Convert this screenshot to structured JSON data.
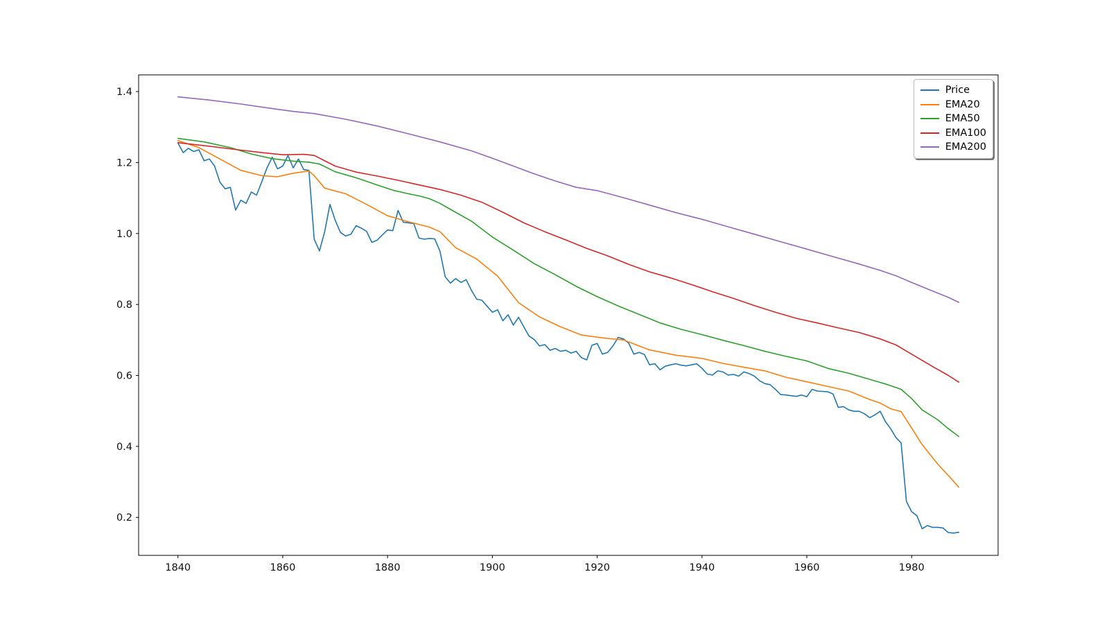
{
  "chart_data": {
    "type": "line",
    "title": "",
    "xlabel": "",
    "ylabel": "",
    "grid": false,
    "xlim": [
      1832.5,
      1996.5
    ],
    "ylim": [
      0.093,
      1.447
    ],
    "legend_position": "upper right",
    "x_ticks": {
      "values": [
        1840,
        1860,
        1880,
        1900,
        1920,
        1940,
        1960,
        1980
      ],
      "labels": [
        "1840",
        "1860",
        "1880",
        "1900",
        "1920",
        "1940",
        "1960",
        "1980"
      ]
    },
    "y_ticks": {
      "values": [
        0.2,
        0.4,
        0.6,
        0.8,
        1.0,
        1.2,
        1.4
      ],
      "labels": [
        "0.2",
        "0.4",
        "0.6",
        "0.8",
        "1.0",
        "1.2",
        "1.4"
      ]
    },
    "series": [
      {
        "name": "Price",
        "color": "#1f77b4",
        "x_start": 1840,
        "x_step": 1,
        "values": [
          1.255,
          1.228,
          1.24,
          1.231,
          1.236,
          1.205,
          1.21,
          1.19,
          1.145,
          1.126,
          1.13,
          1.066,
          1.094,
          1.085,
          1.117,
          1.108,
          1.146,
          1.185,
          1.215,
          1.182,
          1.19,
          1.22,
          1.185,
          1.21,
          1.18,
          1.178,
          0.984,
          0.951,
          1.005,
          1.082,
          1.038,
          1.003,
          0.993,
          0.998,
          1.022,
          1.015,
          1.006,
          0.975,
          0.981,
          0.996,
          1.01,
          1.008,
          1.065,
          1.032,
          1.03,
          1.028,
          0.987,
          0.984,
          0.986,
          0.985,
          0.95,
          0.878,
          0.86,
          0.873,
          0.862,
          0.87,
          0.84,
          0.815,
          0.812,
          0.795,
          0.778,
          0.785,
          0.754,
          0.771,
          0.742,
          0.764,
          0.737,
          0.711,
          0.701,
          0.683,
          0.687,
          0.671,
          0.676,
          0.668,
          0.671,
          0.663,
          0.668,
          0.65,
          0.644,
          0.685,
          0.69,
          0.66,
          0.665,
          0.683,
          0.707,
          0.703,
          0.691,
          0.66,
          0.665,
          0.659,
          0.63,
          0.633,
          0.616,
          0.626,
          0.63,
          0.633,
          0.629,
          0.627,
          0.63,
          0.633,
          0.62,
          0.604,
          0.601,
          0.613,
          0.61,
          0.601,
          0.603,
          0.598,
          0.61,
          0.605,
          0.598,
          0.585,
          0.577,
          0.574,
          0.561,
          0.546,
          0.545,
          0.543,
          0.541,
          0.545,
          0.54,
          0.561,
          0.556,
          0.555,
          0.554,
          0.548,
          0.51,
          0.512,
          0.503,
          0.499,
          0.499,
          0.492,
          0.481,
          0.489,
          0.499,
          0.47,
          0.45,
          0.425,
          0.41,
          0.245,
          0.216,
          0.205,
          0.168,
          0.177,
          0.172,
          0.172,
          0.17,
          0.157,
          0.156,
          0.158
        ]
      },
      {
        "name": "EMA20",
        "color": "#ff7f0e",
        "points": [
          [
            1840,
            1.262
          ],
          [
            1844,
            1.242
          ],
          [
            1848,
            1.21
          ],
          [
            1852,
            1.178
          ],
          [
            1856,
            1.163
          ],
          [
            1859,
            1.16
          ],
          [
            1862,
            1.17
          ],
          [
            1865,
            1.176
          ],
          [
            1866,
            1.163
          ],
          [
            1868,
            1.128
          ],
          [
            1872,
            1.112
          ],
          [
            1876,
            1.082
          ],
          [
            1880,
            1.05
          ],
          [
            1884,
            1.033
          ],
          [
            1888,
            1.018
          ],
          [
            1890,
            1.005
          ],
          [
            1893,
            0.96
          ],
          [
            1897,
            0.928
          ],
          [
            1901,
            0.88
          ],
          [
            1905,
            0.805
          ],
          [
            1909,
            0.765
          ],
          [
            1913,
            0.737
          ],
          [
            1917,
            0.714
          ],
          [
            1921,
            0.706
          ],
          [
            1925,
            0.7
          ],
          [
            1930,
            0.672
          ],
          [
            1935,
            0.657
          ],
          [
            1940,
            0.648
          ],
          [
            1944,
            0.634
          ],
          [
            1948,
            0.623
          ],
          [
            1952,
            0.613
          ],
          [
            1956,
            0.595
          ],
          [
            1960,
            0.582
          ],
          [
            1964,
            0.569
          ],
          [
            1968,
            0.556
          ],
          [
            1972,
            0.532
          ],
          [
            1974,
            0.522
          ],
          [
            1976,
            0.506
          ],
          [
            1978,
            0.498
          ],
          [
            1980,
            0.452
          ],
          [
            1982,
            0.405
          ],
          [
            1985,
            0.35
          ],
          [
            1987,
            0.318
          ],
          [
            1989,
            0.285
          ]
        ]
      },
      {
        "name": "EMA50",
        "color": "#2ca02c",
        "points": [
          [
            1840,
            1.268
          ],
          [
            1845,
            1.258
          ],
          [
            1850,
            1.242
          ],
          [
            1854,
            1.224
          ],
          [
            1858,
            1.211
          ],
          [
            1862,
            1.204
          ],
          [
            1865,
            1.201
          ],
          [
            1867,
            1.196
          ],
          [
            1870,
            1.174
          ],
          [
            1874,
            1.157
          ],
          [
            1878,
            1.137
          ],
          [
            1881,
            1.122
          ],
          [
            1884,
            1.112
          ],
          [
            1886,
            1.106
          ],
          [
            1888,
            1.098
          ],
          [
            1890,
            1.085
          ],
          [
            1892,
            1.068
          ],
          [
            1896,
            1.035
          ],
          [
            1900,
            0.99
          ],
          [
            1904,
            0.953
          ],
          [
            1908,
            0.915
          ],
          [
            1912,
            0.884
          ],
          [
            1916,
            0.851
          ],
          [
            1920,
            0.822
          ],
          [
            1924,
            0.796
          ],
          [
            1928,
            0.772
          ],
          [
            1932,
            0.748
          ],
          [
            1936,
            0.73
          ],
          [
            1940,
            0.715
          ],
          [
            1944,
            0.699
          ],
          [
            1948,
            0.684
          ],
          [
            1952,
            0.668
          ],
          [
            1956,
            0.654
          ],
          [
            1960,
            0.641
          ],
          [
            1964,
            0.62
          ],
          [
            1968,
            0.606
          ],
          [
            1972,
            0.589
          ],
          [
            1975,
            0.576
          ],
          [
            1977,
            0.566
          ],
          [
            1978,
            0.561
          ],
          [
            1980,
            0.535
          ],
          [
            1982,
            0.503
          ],
          [
            1985,
            0.475
          ],
          [
            1987,
            0.45
          ],
          [
            1989,
            0.428
          ]
        ]
      },
      {
        "name": "EMA100",
        "color": "#d62728",
        "points": [
          [
            1840,
            1.256
          ],
          [
            1846,
            1.246
          ],
          [
            1852,
            1.235
          ],
          [
            1856,
            1.228
          ],
          [
            1860,
            1.222
          ],
          [
            1864,
            1.223
          ],
          [
            1866,
            1.22
          ],
          [
            1868,
            1.205
          ],
          [
            1870,
            1.19
          ],
          [
            1874,
            1.173
          ],
          [
            1878,
            1.162
          ],
          [
            1882,
            1.15
          ],
          [
            1886,
            1.137
          ],
          [
            1890,
            1.124
          ],
          [
            1894,
            1.108
          ],
          [
            1898,
            1.088
          ],
          [
            1902,
            1.06
          ],
          [
            1906,
            1.03
          ],
          [
            1910,
            1.005
          ],
          [
            1914,
            0.982
          ],
          [
            1918,
            0.958
          ],
          [
            1922,
            0.937
          ],
          [
            1926,
            0.913
          ],
          [
            1930,
            0.892
          ],
          [
            1934,
            0.875
          ],
          [
            1938,
            0.856
          ],
          [
            1942,
            0.836
          ],
          [
            1946,
            0.817
          ],
          [
            1950,
            0.797
          ],
          [
            1954,
            0.778
          ],
          [
            1958,
            0.761
          ],
          [
            1962,
            0.748
          ],
          [
            1966,
            0.734
          ],
          [
            1970,
            0.721
          ],
          [
            1974,
            0.703
          ],
          [
            1977,
            0.686
          ],
          [
            1980,
            0.66
          ],
          [
            1984,
            0.625
          ],
          [
            1987,
            0.6
          ],
          [
            1989,
            0.581
          ]
        ]
      },
      {
        "name": "EMA200",
        "color": "#9467bd",
        "points": [
          [
            1840,
            1.385
          ],
          [
            1846,
            1.376
          ],
          [
            1852,
            1.365
          ],
          [
            1858,
            1.352
          ],
          [
            1862,
            1.344
          ],
          [
            1866,
            1.338
          ],
          [
            1872,
            1.322
          ],
          [
            1878,
            1.303
          ],
          [
            1884,
            1.281
          ],
          [
            1890,
            1.258
          ],
          [
            1896,
            1.233
          ],
          [
            1900,
            1.212
          ],
          [
            1904,
            1.19
          ],
          [
            1908,
            1.168
          ],
          [
            1912,
            1.148
          ],
          [
            1916,
            1.13
          ],
          [
            1920,
            1.121
          ],
          [
            1925,
            1.101
          ],
          [
            1930,
            1.08
          ],
          [
            1935,
            1.059
          ],
          [
            1940,
            1.04
          ],
          [
            1945,
            1.019
          ],
          [
            1950,
            0.998
          ],
          [
            1955,
            0.977
          ],
          [
            1960,
            0.956
          ],
          [
            1965,
            0.935
          ],
          [
            1970,
            0.914
          ],
          [
            1974,
            0.896
          ],
          [
            1977,
            0.881
          ],
          [
            1980,
            0.862
          ],
          [
            1984,
            0.838
          ],
          [
            1987,
            0.82
          ],
          [
            1989,
            0.806
          ]
        ]
      }
    ]
  }
}
